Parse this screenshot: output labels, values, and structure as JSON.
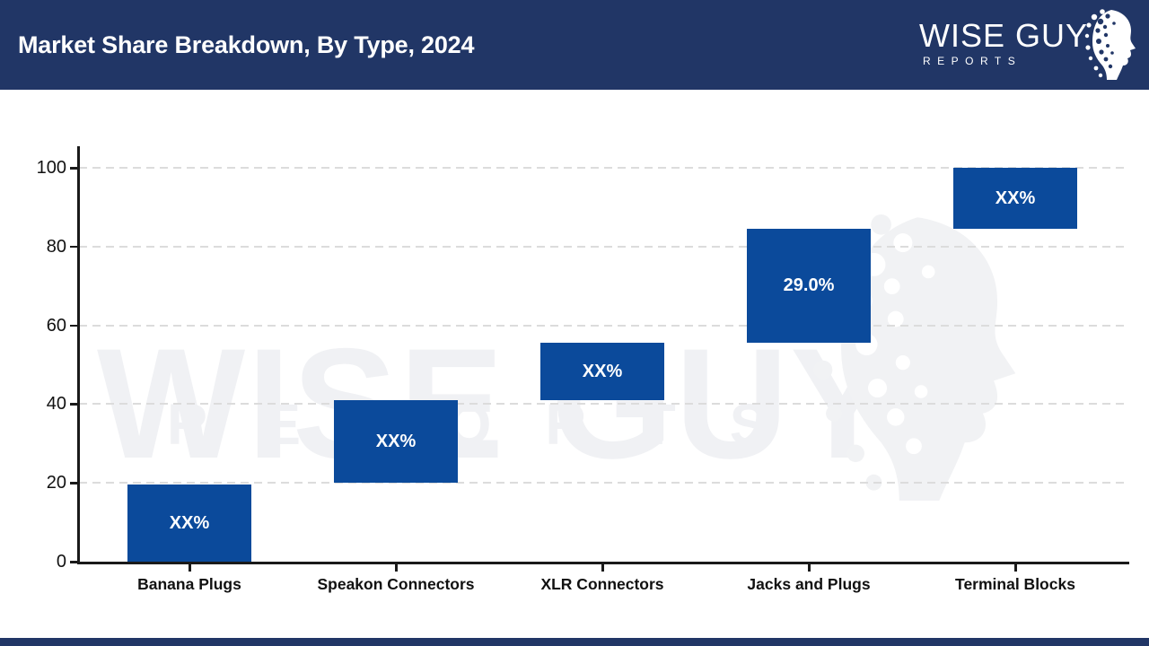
{
  "header": {
    "title": "Market Share Breakdown, By Type, 2024",
    "logo": {
      "name": "WISE GUY",
      "tagline": "REPORTS"
    }
  },
  "watermark": {
    "line1": "WISE GUY",
    "line2": "REPORTS"
  },
  "colors": {
    "header_bg": "#213666",
    "footer_bg": "#213666",
    "bar": "#0b4a9b",
    "bar_value_text": "#ffffff",
    "gridline": "#dcdcdc",
    "axis": "#1a1a1a",
    "watermark": "#f0f1f4"
  },
  "chart_data": {
    "type": "bar",
    "subtype": "floating-waterfall",
    "title": "Market Share Breakdown, By Type, 2024",
    "xlabel": "",
    "ylabel": "",
    "categories": [
      "Banana Plugs",
      "Speakon Connectors",
      "XLR Connectors",
      "Jacks and Plugs",
      "Terminal Blocks"
    ],
    "bars": [
      {
        "category": "Banana Plugs",
        "start": 0,
        "end": 19.5,
        "label": "XX%"
      },
      {
        "category": "Speakon Connectors",
        "start": 20,
        "end": 41,
        "label": "XX%"
      },
      {
        "category": "XLR Connectors",
        "start": 41,
        "end": 55.5,
        "label": "XX%"
      },
      {
        "category": "Jacks and Plugs",
        "start": 55.5,
        "end": 84.5,
        "label": "29.0%"
      },
      {
        "category": "Terminal Blocks",
        "start": 84.5,
        "end": 100,
        "label": "XX%"
      }
    ],
    "yticks": [
      0,
      20,
      40,
      60,
      80,
      100
    ],
    "ylim": [
      0,
      105.5
    ],
    "grid": "horizontal-dashed",
    "legend": "none"
  }
}
